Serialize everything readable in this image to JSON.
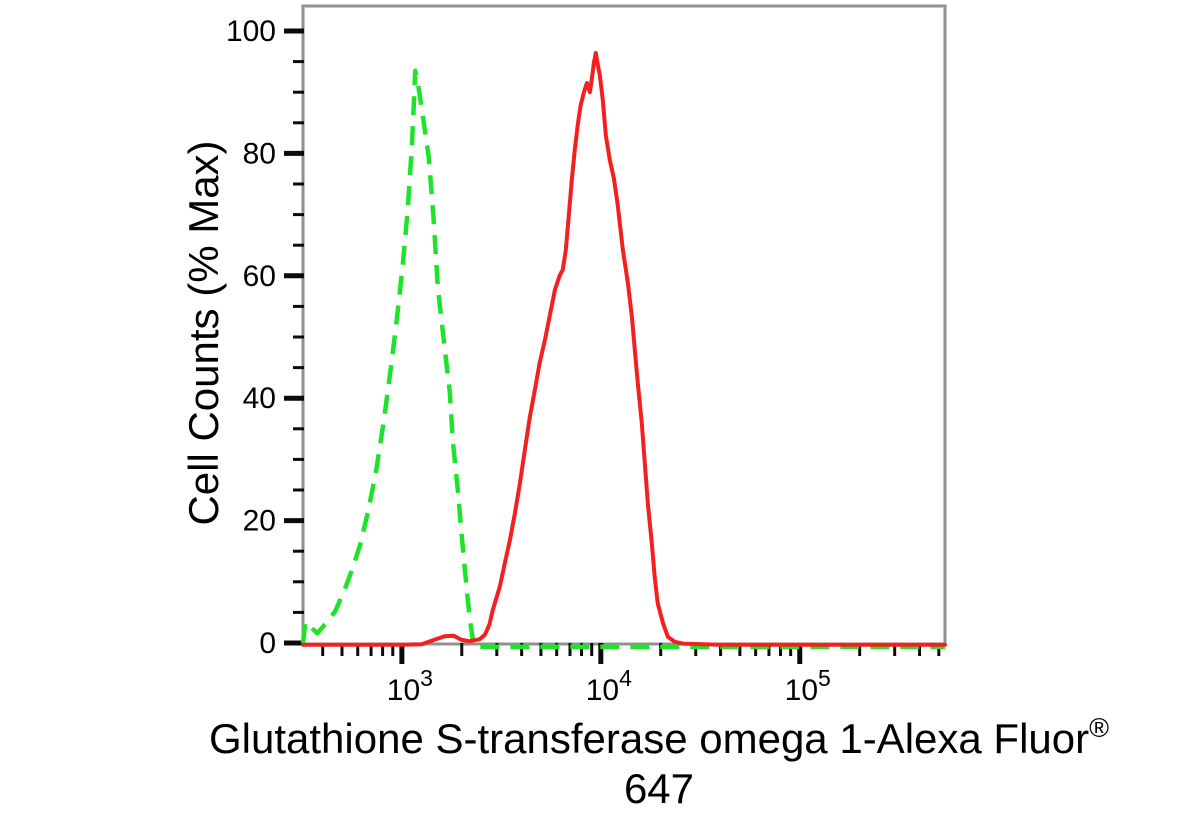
{
  "figure": {
    "y_axis_title": "Cell Counts (% Max)",
    "x_axis_title_line1": "Glutathione S-transferase omega 1-Alexa Fluor",
    "x_axis_title_sup": "®",
    "x_axis_title_line2": "647"
  },
  "chart_data": {
    "type": "line",
    "subtype": "flow-cytometry-histogram-overlay",
    "title": "",
    "xlabel": "Glutathione S-transferase omega 1-Alexa Fluor® 647",
    "ylabel": "Cell Counts (% Max)",
    "x_scale": "log10",
    "xlim_log10": [
      2.503,
      5.73
    ],
    "ylim": [
      0,
      104
    ],
    "grid": false,
    "legend": "none",
    "frame_color": "#909090",
    "tick_color": "#0b0b0b",
    "label_color": "#000000",
    "x_ticks_major": [
      {
        "base": "10",
        "exponent": "3",
        "log10": 3
      },
      {
        "base": "10",
        "exponent": "4",
        "log10": 4
      },
      {
        "base": "10",
        "exponent": "5",
        "log10": 5
      }
    ],
    "x_minor_tick_multipliers": [
      2,
      3,
      4,
      5,
      6,
      7,
      8,
      9
    ],
    "y_ticks_major": [
      0,
      20,
      40,
      60,
      80,
      100
    ],
    "y_minor_tick_step": 5,
    "series": [
      {
        "name": "green-dashed-histogram",
        "color": "#1fe32b",
        "line_style": "dashed",
        "line_width": 4.5,
        "dash_pattern": [
          19,
          11
        ],
        "peak": {
          "x_log10": 3.07,
          "y_pct": 93.5
        },
        "points_log10_pct": [
          [
            2.503,
            0
          ],
          [
            2.515,
            3.4
          ],
          [
            2.575,
            1.6
          ],
          [
            2.62,
            3.3
          ],
          [
            2.665,
            5.2
          ],
          [
            2.71,
            8.5
          ],
          [
            2.75,
            12
          ],
          [
            2.79,
            16
          ],
          [
            2.83,
            21.5
          ],
          [
            2.87,
            28
          ],
          [
            2.91,
            36.5
          ],
          [
            2.945,
            45
          ],
          [
            2.975,
            53
          ],
          [
            3.005,
            62
          ],
          [
            3.03,
            71
          ],
          [
            3.05,
            81
          ],
          [
            3.06,
            88
          ],
          [
            3.067,
            93.5
          ],
          [
            3.085,
            90.5
          ],
          [
            3.11,
            85
          ],
          [
            3.135,
            79.5
          ],
          [
            3.158,
            70
          ],
          [
            3.181,
            58
          ],
          [
            3.216,
            48
          ],
          [
            3.241,
            41
          ],
          [
            3.256,
            33
          ],
          [
            3.281,
            25
          ],
          [
            3.302,
            17
          ],
          [
            3.327,
            8.5
          ],
          [
            3.342,
            3.8
          ],
          [
            3.362,
            -0.6
          ],
          [
            3.6,
            -0.6
          ],
          [
            3.9,
            -0.6
          ],
          [
            4.2,
            -0.6
          ],
          [
            4.5,
            -0.6
          ],
          [
            4.8,
            -0.6
          ],
          [
            5.1,
            -0.6
          ],
          [
            5.4,
            -0.6
          ],
          [
            5.73,
            -0.6
          ]
        ]
      },
      {
        "name": "red-solid-histogram",
        "color": "#f42020",
        "line_style": "solid",
        "line_width": 4,
        "peak": {
          "x_log10": 3.975,
          "y_pct": 96.4
        },
        "points_log10_pct": [
          [
            2.503,
            -0.3
          ],
          [
            2.8,
            -0.3
          ],
          [
            3.0,
            -0.3
          ],
          [
            3.1,
            -0.2
          ],
          [
            3.17,
            0.6
          ],
          [
            3.215,
            1.1
          ],
          [
            3.26,
            1.2
          ],
          [
            3.3,
            0.5
          ],
          [
            3.34,
            0.3
          ],
          [
            3.39,
            0.6
          ],
          [
            3.417,
            1.3
          ],
          [
            3.44,
            3.0
          ],
          [
            3.457,
            5.4
          ],
          [
            3.492,
            9.2
          ],
          [
            3.518,
            13.1
          ],
          [
            3.543,
            16.8
          ],
          [
            3.568,
            21.2
          ],
          [
            3.593,
            26.1
          ],
          [
            3.618,
            31.5
          ],
          [
            3.643,
            36.9
          ],
          [
            3.668,
            41.3
          ],
          [
            3.693,
            45.8
          ],
          [
            3.719,
            49.5
          ],
          [
            3.744,
            53.6
          ],
          [
            3.769,
            57.7
          ],
          [
            3.794,
            60.1
          ],
          [
            3.809,
            61
          ],
          [
            3.824,
            64.2
          ],
          [
            3.839,
            69.9
          ],
          [
            3.854,
            75.7
          ],
          [
            3.869,
            80.6
          ],
          [
            3.884,
            84.6
          ],
          [
            3.899,
            87.9
          ],
          [
            3.915,
            90
          ],
          [
            3.93,
            91.5
          ],
          [
            3.945,
            90
          ],
          [
            3.958,
            93
          ],
          [
            3.965,
            94.9
          ],
          [
            3.97,
            95.6
          ],
          [
            3.975,
            96.4
          ],
          [
            3.985,
            94.5
          ],
          [
            3.995,
            92.8
          ],
          [
            4.01,
            88.7
          ],
          [
            4.025,
            83
          ],
          [
            4.045,
            78.9
          ],
          [
            4.065,
            76
          ],
          [
            4.085,
            71.6
          ],
          [
            4.111,
            64.2
          ],
          [
            4.136,
            58.8
          ],
          [
            4.156,
            53.3
          ],
          [
            4.171,
            47.9
          ],
          [
            4.186,
            42.5
          ],
          [
            4.206,
            35.9
          ],
          [
            4.221,
            29.4
          ],
          [
            4.236,
            22.9
          ],
          [
            4.256,
            16.3
          ],
          [
            4.271,
            10.8
          ],
          [
            4.286,
            6.5
          ],
          [
            4.312,
            3.3
          ],
          [
            4.337,
            1.0
          ],
          [
            4.372,
            0.2
          ],
          [
            4.412,
            -0.1
          ],
          [
            4.6,
            -0.3
          ],
          [
            5.0,
            -0.3
          ],
          [
            5.4,
            -0.3
          ],
          [
            5.73,
            -0.3
          ]
        ]
      }
    ]
  }
}
